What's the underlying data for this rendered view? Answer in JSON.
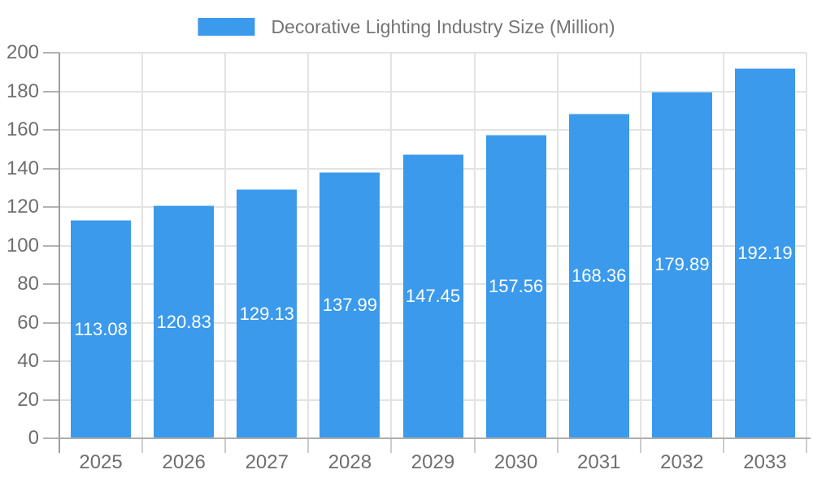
{
  "chart_data": {
    "type": "bar",
    "title": "Decorative Lighting Industry Size (Million)",
    "legend": [
      "Decorative Lighting Industry Size (Million)"
    ],
    "legend_position": "top",
    "categories": [
      "2025",
      "2026",
      "2027",
      "2028",
      "2029",
      "2030",
      "2031",
      "2032",
      "2033"
    ],
    "values": [
      113.08,
      120.83,
      129.13,
      137.99,
      147.45,
      157.56,
      168.36,
      179.89,
      192.19
    ],
    "value_labels": [
      "113.08",
      "120.83",
      "129.13",
      "137.99",
      "147.45",
      "157.56",
      "168.36",
      "179.89",
      "192.19"
    ],
    "xlabel": "",
    "ylabel": "",
    "ylim": [
      0,
      200
    ],
    "ytick_step": 20,
    "grid": true,
    "colors": {
      "bar": "#3b9aec",
      "bar_edge": "#a9d2f6",
      "bar_value_text": "#ffffff",
      "axis_text": "#6e6e6e",
      "legend_text": "#757575",
      "gridline": "#e3e3e3",
      "y_axis_line": "#9e9e9e",
      "x_axis_line": "#adadad",
      "y_tick": "#b3b3b3",
      "x_tick": "#cccccc",
      "background": "#ffffff"
    }
  }
}
